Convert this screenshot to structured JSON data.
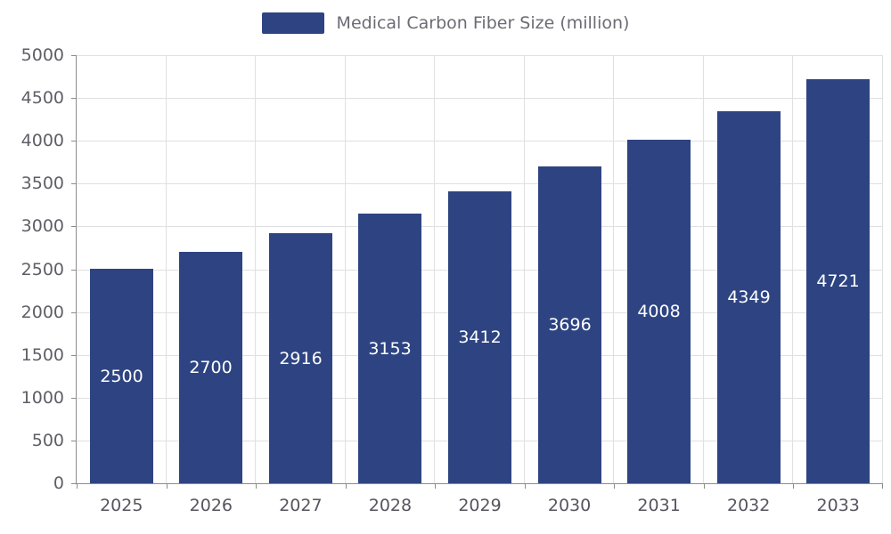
{
  "chart_data": {
    "type": "bar",
    "title": "Medical Carbon Fiber Size (million)",
    "categories": [
      "2025",
      "2026",
      "2027",
      "2028",
      "2029",
      "2030",
      "2031",
      "2032",
      "2033"
    ],
    "values": [
      2500,
      2700,
      2916,
      3153,
      3412,
      3696,
      4008,
      4349,
      4721
    ],
    "xlabel": "",
    "ylabel": "",
    "ylim": [
      0,
      5000
    ],
    "ytick_step": 500,
    "grid": true,
    "legend_position": "top",
    "bar_color": "#2E4482",
    "bar_label_color": "#FFFFFF",
    "axis_color": "#8C8C8C",
    "grid_color": "#E0E0E0",
    "ytick_text_color": "#5E5E66",
    "xtick_text_color": "#55555E",
    "legend_text_color": "#6B6B74"
  }
}
